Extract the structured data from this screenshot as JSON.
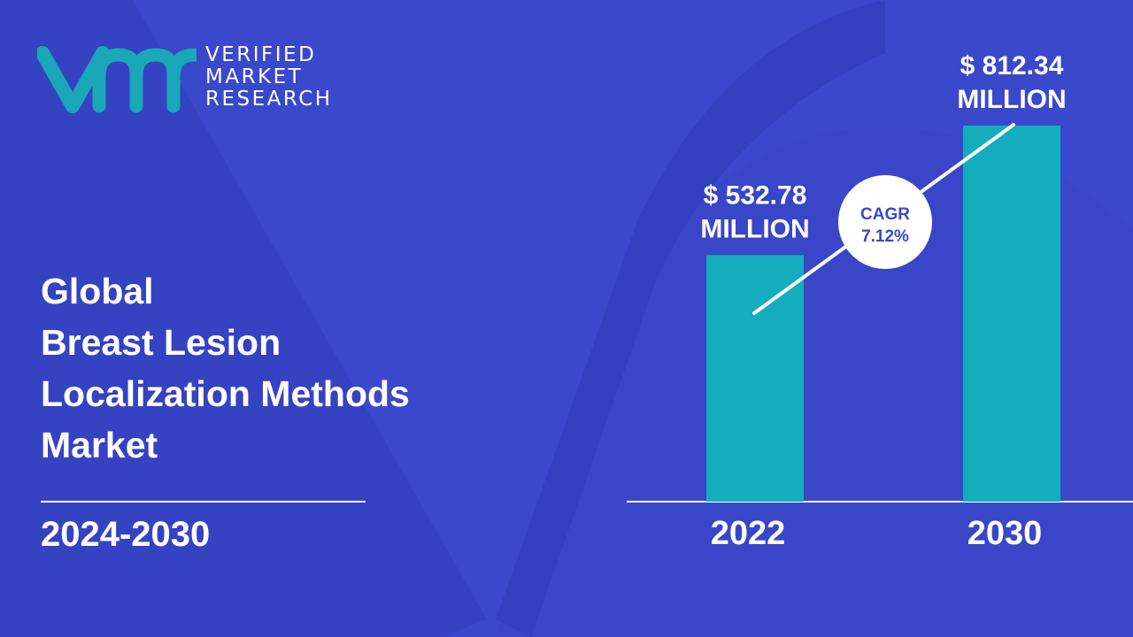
{
  "brand": {
    "line1": "VERIFIED",
    "line2": "MARKET",
    "line3": "RESEARCH",
    "mark_color": "#1aa7b8"
  },
  "title_lines": [
    "Global",
    "Breast Lesion",
    "Localization Methods",
    "Market"
  ],
  "period": "2024-2030",
  "colors": {
    "background": "#3a48cc",
    "bar": "#13adbd",
    "text": "#ffffff"
  },
  "chart_data": {
    "type": "bar",
    "categories": [
      "2022",
      "2030"
    ],
    "values": [
      532.78,
      812.34
    ],
    "value_labels": [
      [
        "$ 532.78",
        "MILLION"
      ],
      [
        "$ 812.34",
        "MILLION"
      ]
    ],
    "unit": "$ Million",
    "cagr": {
      "label": "CAGR",
      "value": "7.12%"
    }
  }
}
